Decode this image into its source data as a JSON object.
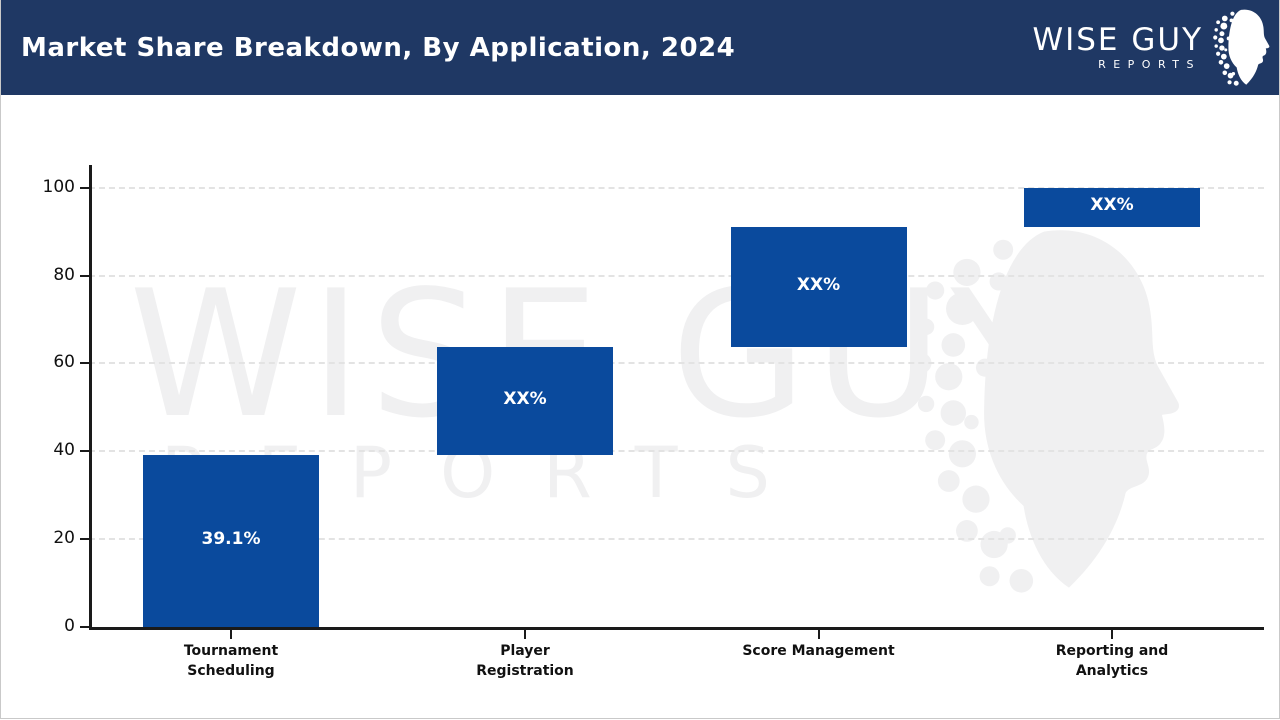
{
  "header": {
    "title": "Market Share Breakdown, By Application, 2024",
    "logo": {
      "line1": "WISE GUY",
      "line2": "REPORTS"
    }
  },
  "watermark": {
    "line1": "WISE GUY",
    "line2": "REPORTS"
  },
  "chart_data": {
    "type": "bar",
    "subtype": "waterfall",
    "title": "Market Share Breakdown, By Application, 2024",
    "categories": [
      "Tournament\nScheduling",
      "Player\nRegistration",
      "Score Management",
      "Reporting and\nAnalytics"
    ],
    "segments": [
      {
        "label": "39.1%",
        "start": 0,
        "end": 39.1
      },
      {
        "label": "XX%",
        "start": 39.1,
        "end": 63.7
      },
      {
        "label": "XX%",
        "start": 63.7,
        "end": 91.0
      },
      {
        "label": "XX%",
        "start": 91.0,
        "end": 100
      }
    ],
    "yticks": [
      0,
      20,
      40,
      60,
      80,
      100
    ],
    "ylim": [
      0,
      105
    ],
    "xlabel": "",
    "ylabel": "",
    "grid": "horizontal-dashed",
    "legend": "none",
    "bar_color": "#0a4a9d",
    "bar_label_color": "#ffffff",
    "axis_color": "#1a1a1a",
    "header_color": "#1f3864",
    "watermark_color": "#f0f0f1"
  }
}
